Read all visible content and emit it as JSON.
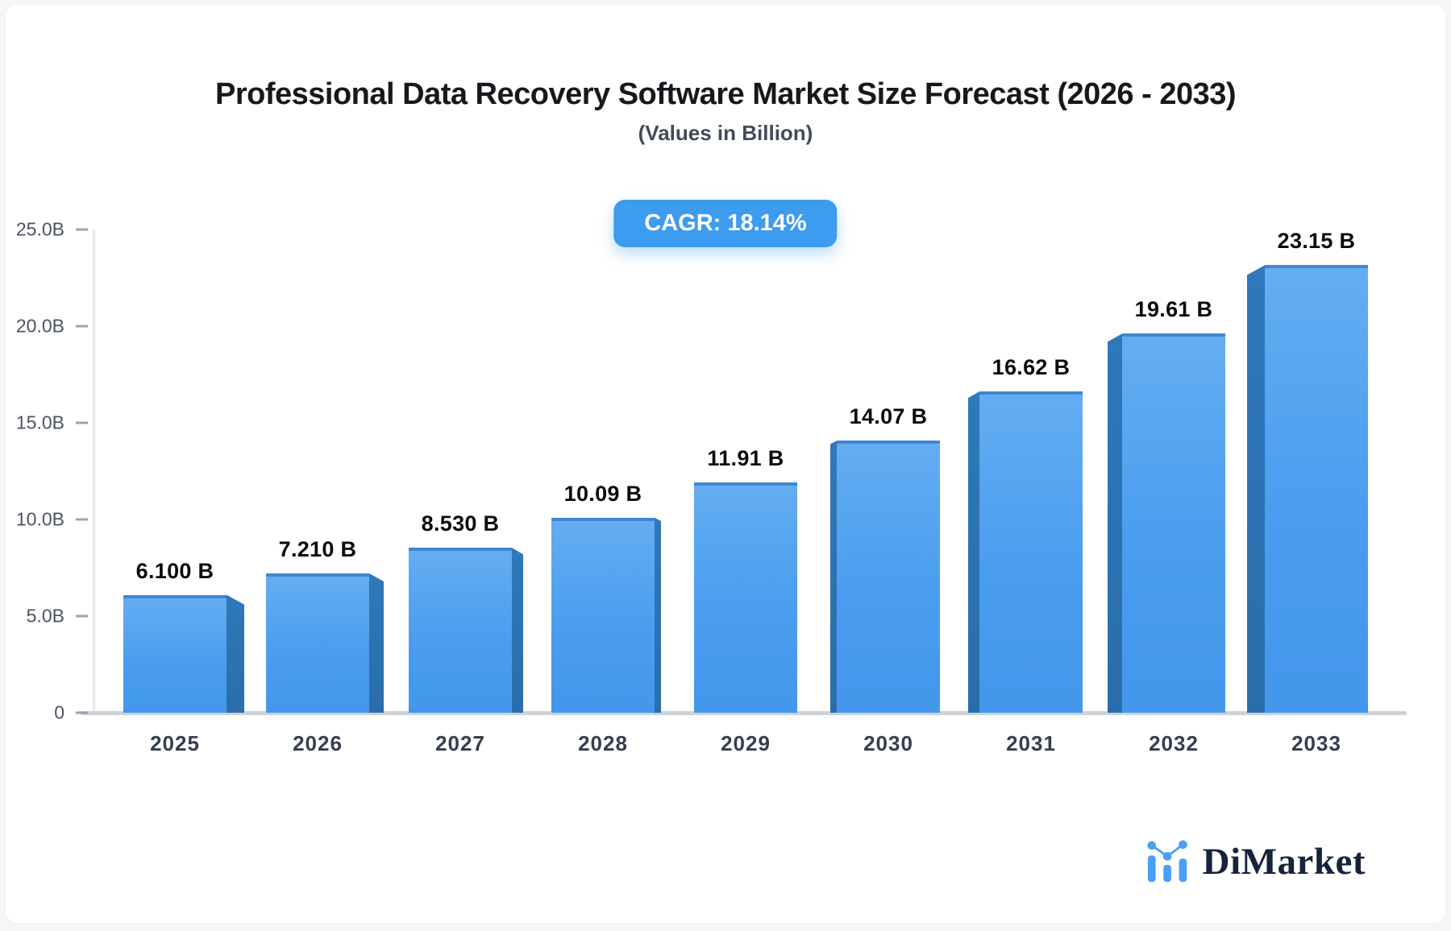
{
  "header": {
    "title": "Professional Data Recovery Software Market Size Forecast (2026 - 2033)",
    "subtitle": "(Values in Billion)"
  },
  "badge": {
    "label": "CAGR: 18.14%"
  },
  "chart_data": {
    "type": "bar",
    "title": "Professional Data Recovery Software Market Size Forecast (2026 - 2033)",
    "subtitle": "(Values in Billion)",
    "cagr": "18.14%",
    "categories": [
      "2025",
      "2026",
      "2027",
      "2028",
      "2029",
      "2030",
      "2031",
      "2032",
      "2033"
    ],
    "values": [
      6.1,
      7.21,
      8.53,
      10.09,
      11.91,
      14.07,
      16.62,
      19.61,
      23.15
    ],
    "value_labels": [
      "6.100 B",
      "7.210 B",
      "8.530 B",
      "10.09 B",
      "11.91 B",
      "14.07 B",
      "16.62 B",
      "19.61 B",
      "23.15 B"
    ],
    "unit": "Billion",
    "ylim": [
      0,
      25
    ],
    "yticks": [
      {
        "value": 25,
        "label": "25.0B"
      },
      {
        "value": 20,
        "label": "20.0B"
      },
      {
        "value": 15,
        "label": "15.0B"
      },
      {
        "value": 10,
        "label": "10.0B"
      },
      {
        "value": 5,
        "label": "5.0B"
      }
    ],
    "y_zero_label": "0",
    "grid": "off",
    "legend": "none",
    "colors": {
      "bar_face_top": "#64adf2",
      "bar_face_bottom": "#4397ec",
      "bar_top_edge": "#3d87d6",
      "bar_side": "#2e76b8",
      "badge_background": "#3d9bf0",
      "badge_text": "#ffffff",
      "axis_line": "#e4e7ea",
      "baseline": "#cdd2d8",
      "tick_text": "#4b5360",
      "category_text": "#353e4f",
      "value_text": "#0b0b0b"
    }
  },
  "logo": {
    "brand": "DiMarket",
    "icon": "bar-line-chart-icon",
    "icon_color": "#4a9ff5",
    "text_color": "#16233c"
  }
}
